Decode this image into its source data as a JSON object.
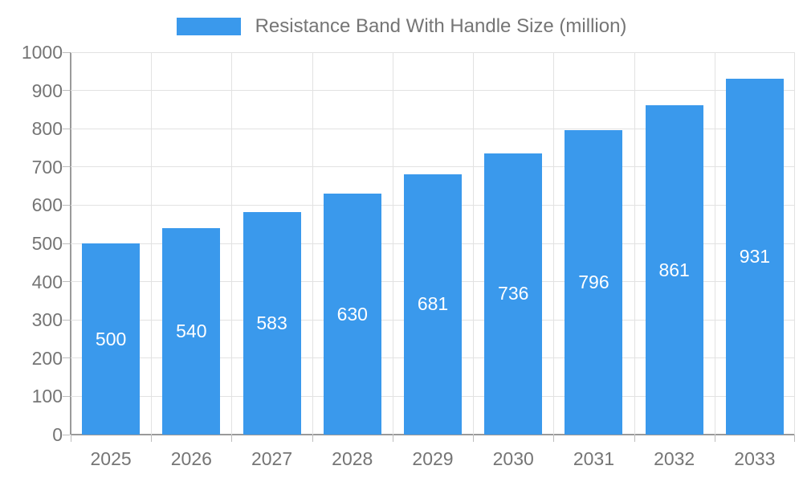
{
  "chart_data": {
    "type": "bar",
    "title": "Resistance Band With Handle Size (million)",
    "categories": [
      "2025",
      "2026",
      "2027",
      "2028",
      "2029",
      "2030",
      "2031",
      "2032",
      "2033"
    ],
    "values": [
      500,
      540,
      583,
      630,
      681,
      736,
      796,
      861,
      931
    ],
    "xlabel": "",
    "ylabel": "",
    "ylim": [
      0,
      1000
    ],
    "ytick_step": 100,
    "ytick_labels": [
      "0",
      "100",
      "200",
      "300",
      "400",
      "500",
      "600",
      "700",
      "800",
      "900",
      "1000"
    ],
    "legend_position": "top",
    "grid": true,
    "bar_color": "#3A99EC",
    "bar_label_color": "#ffffff",
    "axis_text_color": "#757575",
    "grid_color": "#E2E2E2",
    "axis_line_color": "#9A9A9A"
  }
}
